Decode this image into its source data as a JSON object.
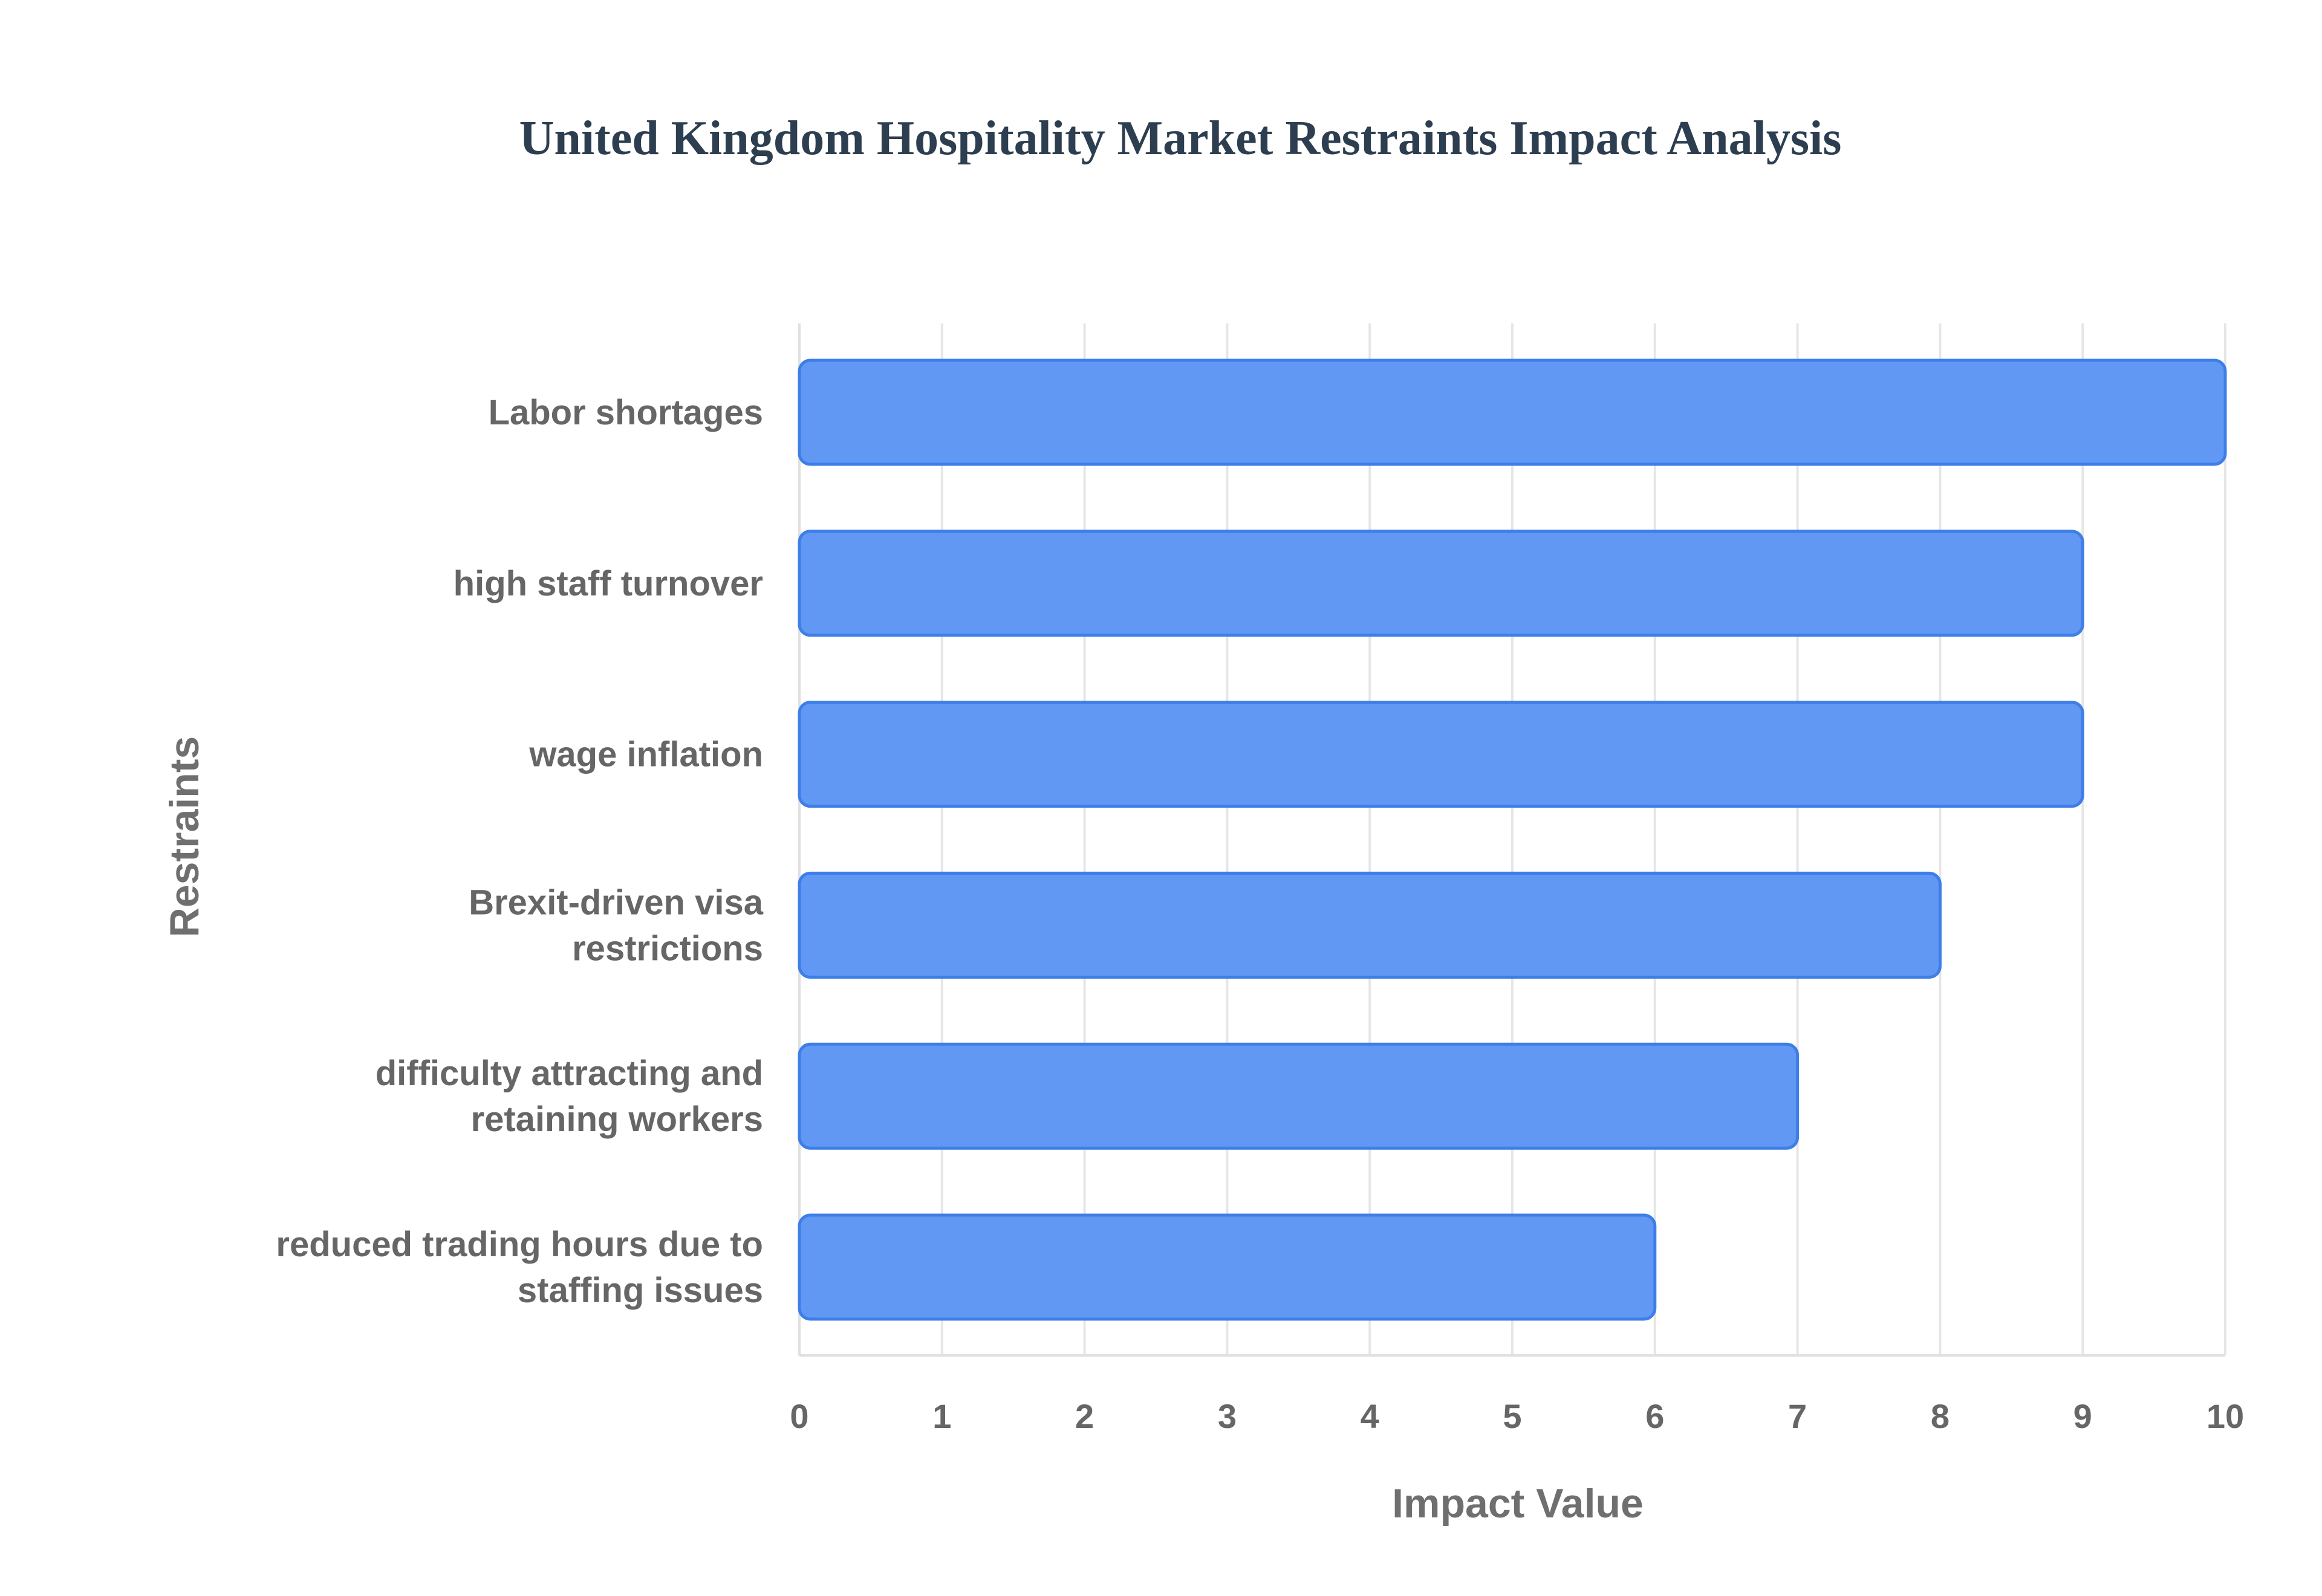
{
  "chart_data": {
    "type": "bar",
    "orientation": "horizontal",
    "title": "United Kingdom Hospitality Market Restraints Impact Analysis",
    "xlabel": "Impact Value",
    "ylabel": "Restraints",
    "xlim": [
      0,
      10
    ],
    "x_ticks": [
      "0",
      "1",
      "2",
      "3",
      "4",
      "5",
      "6",
      "7",
      "8",
      "9",
      "10"
    ],
    "grid": true,
    "legend": "none",
    "categories": [
      [
        "Labor shortages"
      ],
      [
        "high staff turnover"
      ],
      [
        "wage inflation"
      ],
      [
        "Brexit-driven visa",
        "restrictions"
      ],
      [
        "difficulty attracting and",
        "retaining workers"
      ],
      [
        "reduced trading hours due to",
        "staffing issues"
      ]
    ],
    "values": [
      10,
      9,
      9,
      8,
      7,
      6
    ],
    "colors": {
      "bar_fill": "#6198f4",
      "bar_stroke": "#3d7ee8",
      "grid": "#e6e6e6",
      "text": "#666666",
      "title": "#2c3e50"
    }
  }
}
